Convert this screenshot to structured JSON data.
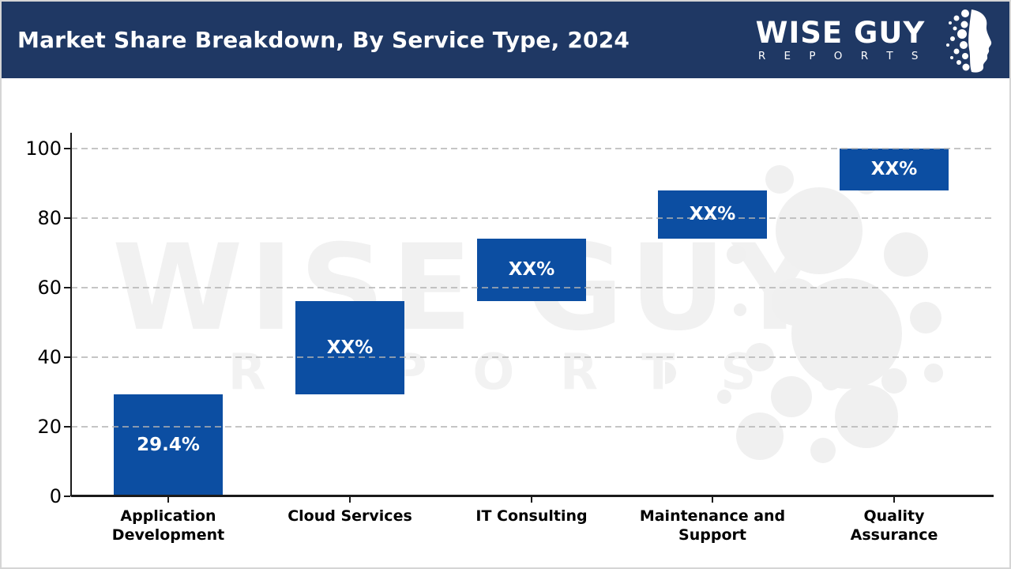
{
  "header": {
    "title": "Market Share Breakdown, By Service Type, 2024",
    "bg_color": "#1F3864",
    "logo": {
      "line1": "WISE GUY",
      "line2": "R E P O R T S"
    }
  },
  "watermark": {
    "line1": "WISE GUY",
    "line2": "REPORTS"
  },
  "chart_data": {
    "type": "bar",
    "subtype": "waterfall-floating-segments",
    "title": "Market Share Breakdown, By Service Type, 2024",
    "xlabel": "",
    "ylabel": "",
    "ylim": [
      0,
      100
    ],
    "yticks": [
      0,
      20,
      40,
      60,
      80,
      100
    ],
    "grid": "dashed-horizontal",
    "legend": "none",
    "bar_color": "#0C4EA2",
    "categories": [
      "Application Development",
      "Cloud Services",
      "IT Consulting",
      "Maintenance and Support",
      "Quality Assurance"
    ],
    "segments": [
      {
        "category": "Application Development",
        "label": "29.4%",
        "start": 0,
        "end": 29.4
      },
      {
        "category": "Cloud Services",
        "label": "XX%",
        "start": 29.4,
        "end": 56.2
      },
      {
        "category": "IT Consulting",
        "label": "XX%",
        "start": 56.2,
        "end": 74.2
      },
      {
        "category": "Maintenance and Support",
        "label": "XX%",
        "start": 74.2,
        "end": 88.0
      },
      {
        "category": "Quality Assurance",
        "label": "XX%",
        "start": 88.0,
        "end": 100.0
      }
    ]
  }
}
